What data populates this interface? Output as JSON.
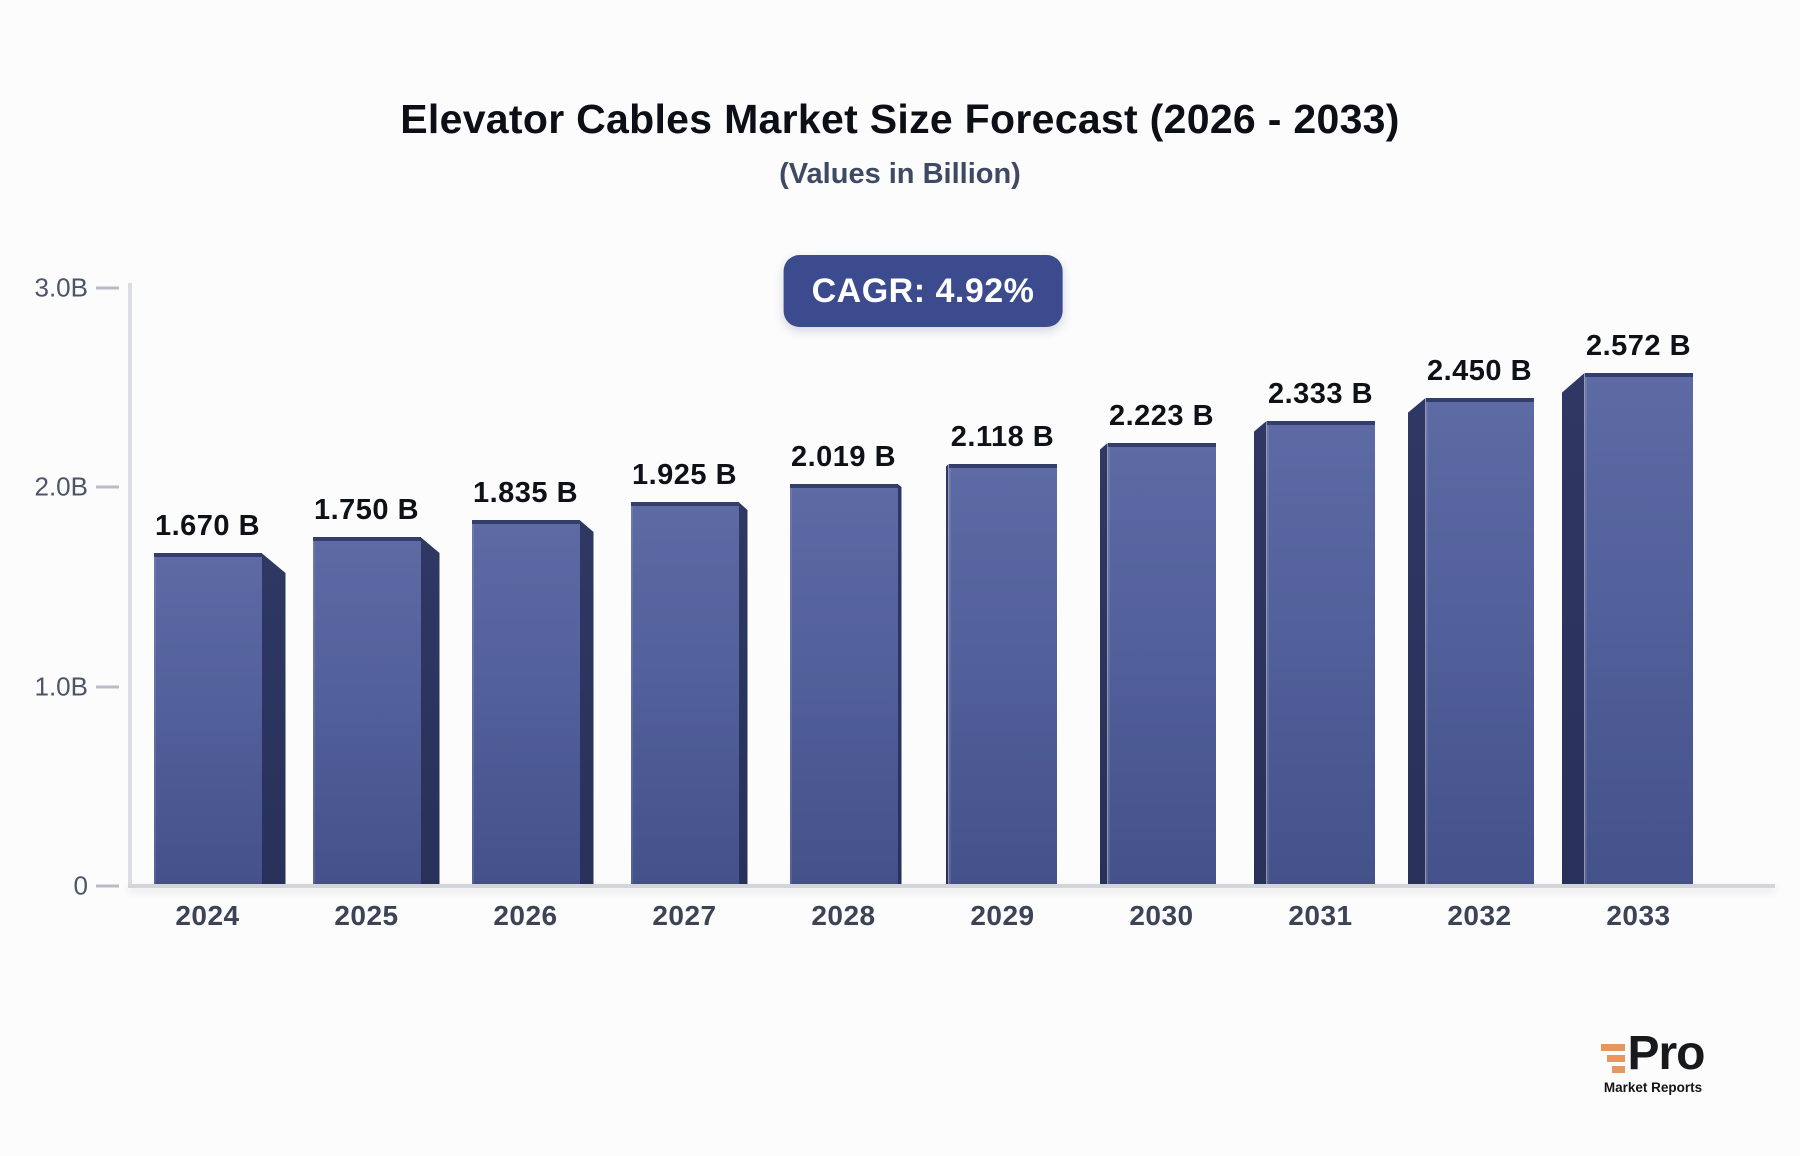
{
  "title": "Elevator Cables Market Size Forecast (2026 - 2033)",
  "subtitle": "(Values in Billion)",
  "badge": {
    "label": "CAGR: 4.92%"
  },
  "logo": {
    "name": "Pro",
    "tagline": "Market Reports"
  },
  "chart_data": {
    "type": "bar",
    "title": "Elevator Cables Market Size Forecast (2026 - 2033)",
    "subtitle": "(Values in Billion)",
    "unit": "Billion",
    "cagr": "4.92%",
    "categories": [
      "2024",
      "2025",
      "2026",
      "2027",
      "2028",
      "2029",
      "2030",
      "2031",
      "2032",
      "2033"
    ],
    "values": [
      1.67,
      1.75,
      1.835,
      1.925,
      2.019,
      2.118,
      2.223,
      2.333,
      2.45,
      2.572
    ],
    "value_labels": [
      "1.670 B",
      "1.750 B",
      "1.835 B",
      "1.925 B",
      "2.019 B",
      "2.118 B",
      "2.223 B",
      "2.333 B",
      "2.450 B",
      "2.572 B"
    ],
    "xlabel": "",
    "ylabel": "",
    "ylim": [
      0,
      3.0
    ],
    "y_ticks": [
      "3.0B",
      "2.0B",
      "1.0B",
      "0"
    ],
    "grid": false,
    "legend": false,
    "style": "3d-bars",
    "colors": {
      "bar_front_top": "#5d6aa4",
      "bar_front_bottom": "#44518a",
      "bar_side": "#2b355e",
      "badge_bg": "#3b4b8d",
      "badge_text": "#ffffff",
      "axis": "#d2d5dc",
      "logo_orange": "#e5975f"
    }
  }
}
